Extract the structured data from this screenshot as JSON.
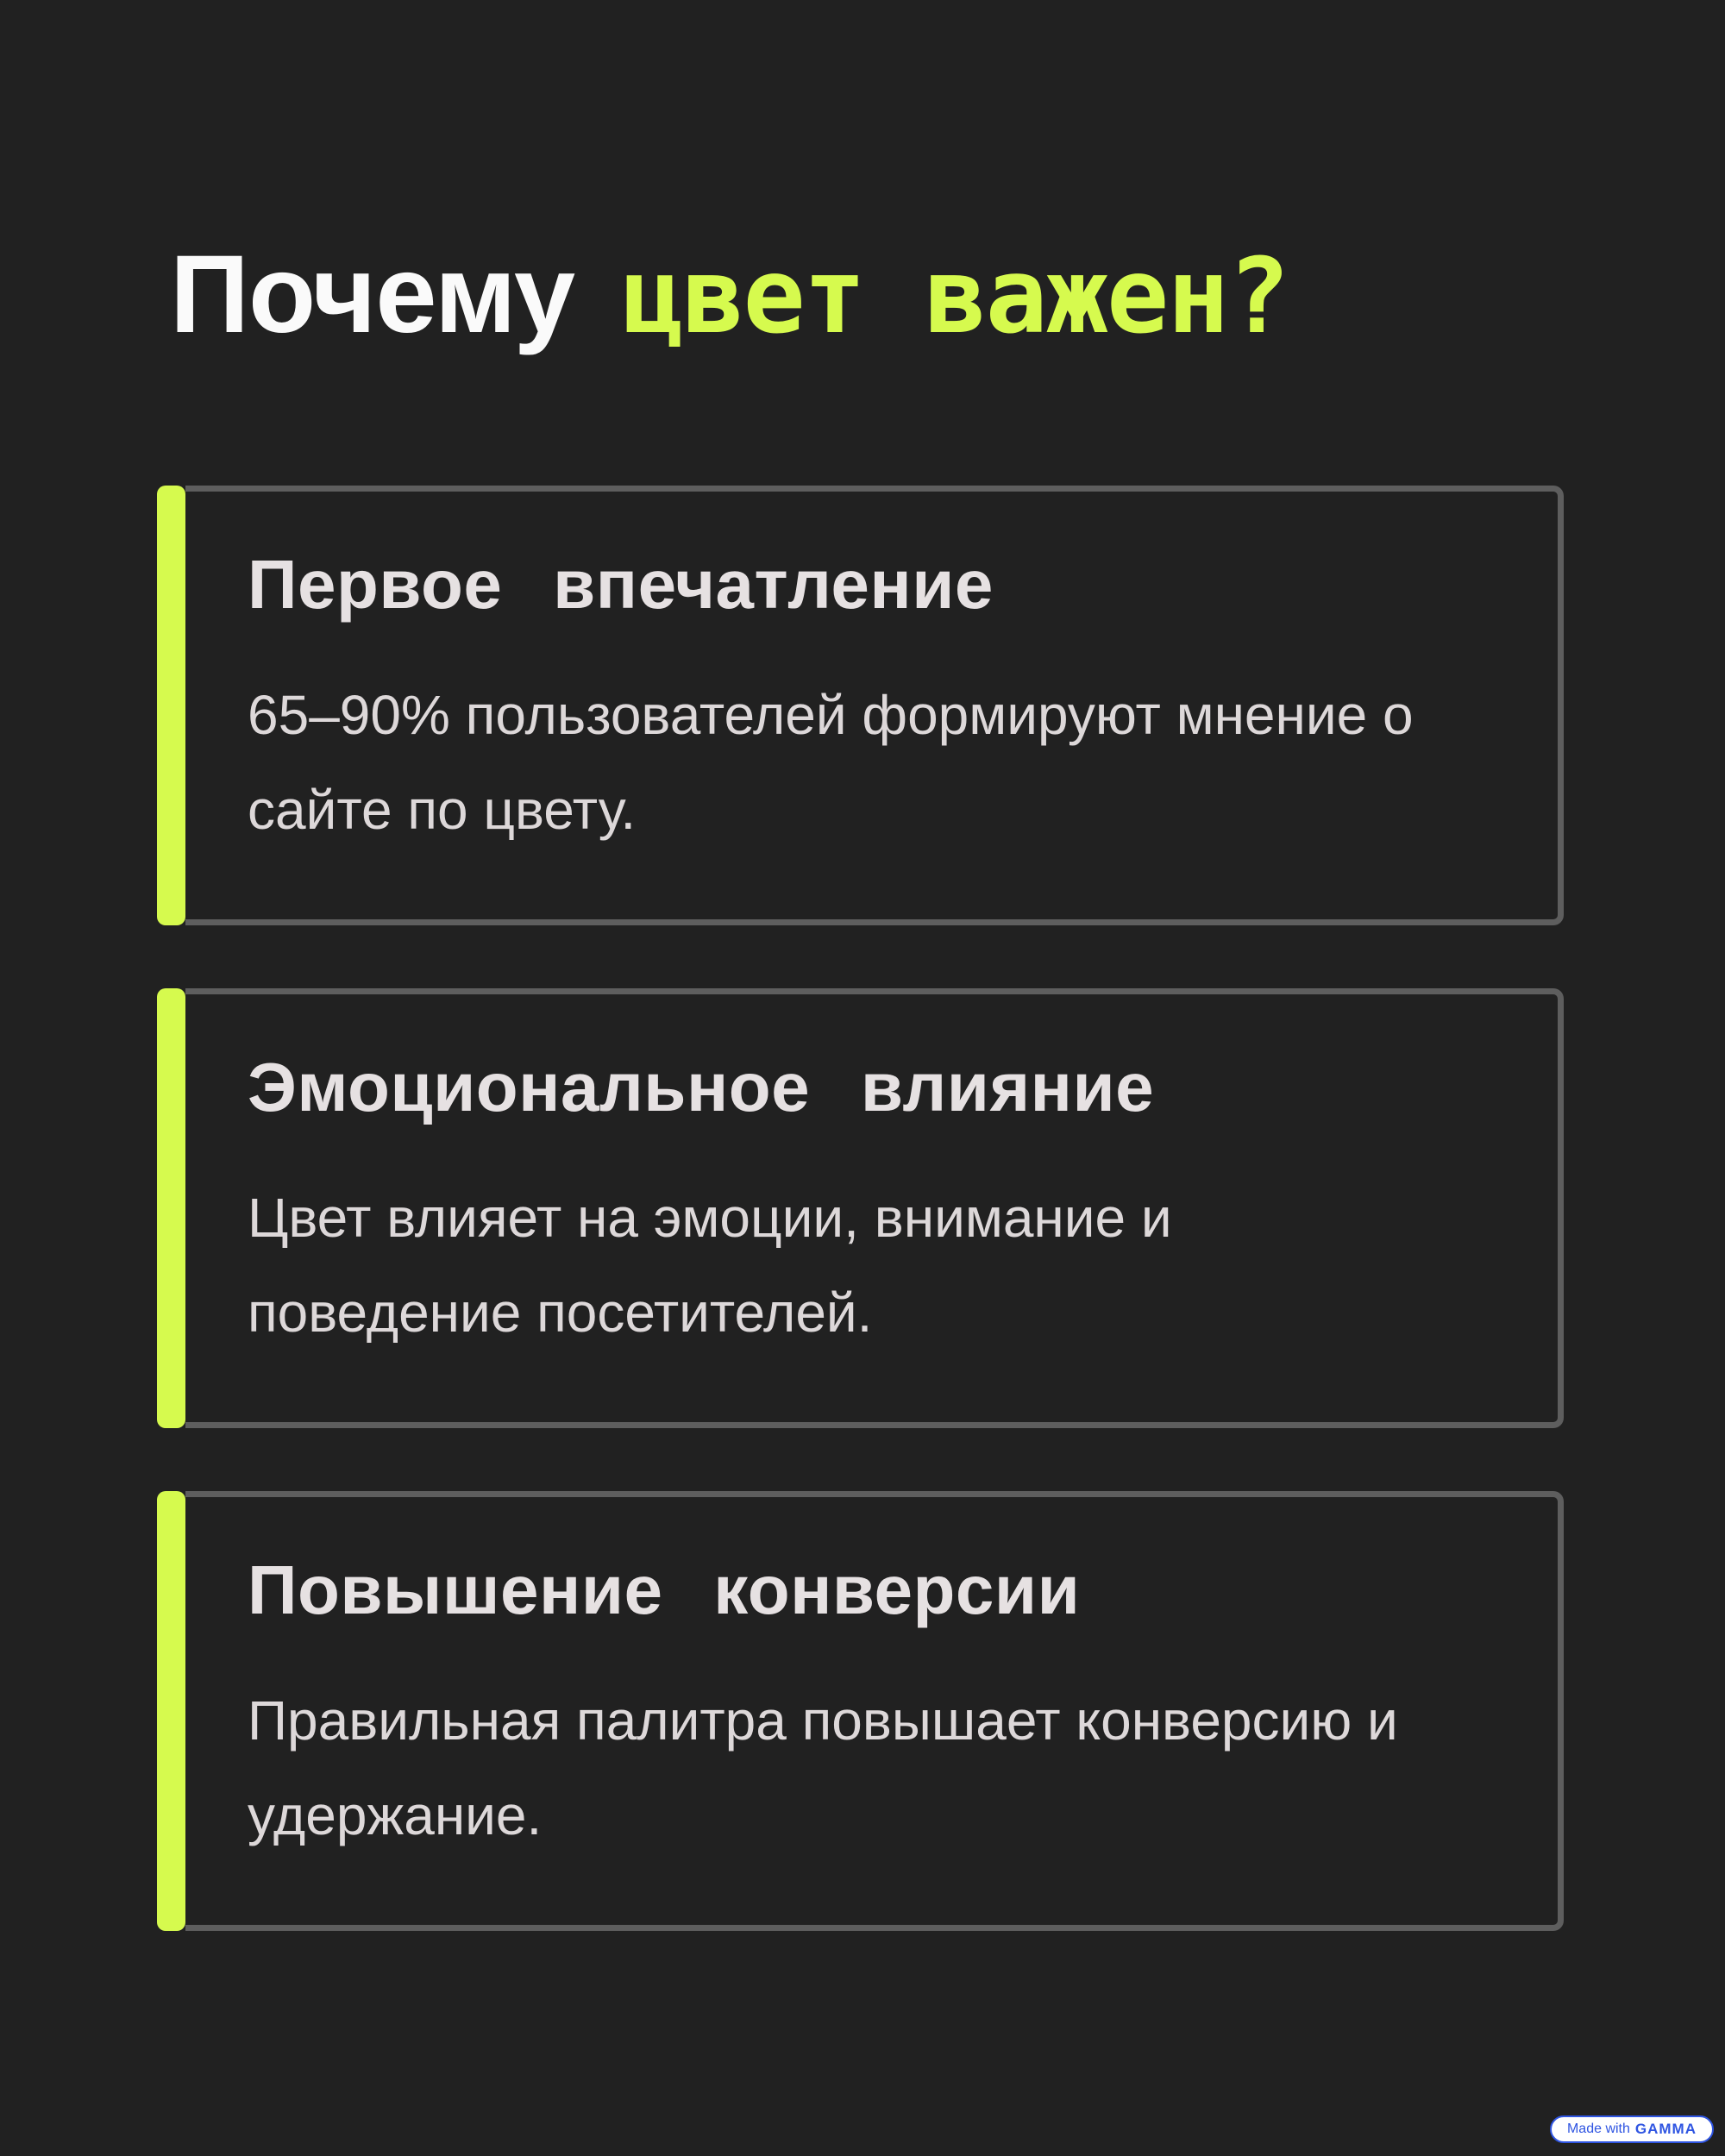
{
  "colors": {
    "background": "#212121",
    "accent": "#d6fa4e",
    "card_border": "#5e5e5e",
    "title_text": "#fafafa",
    "heading_text": "#e6e1e2",
    "body_text": "#ddd8d9",
    "badge_blue": "#2f55e2",
    "badge_bg": "#ffffff"
  },
  "title": {
    "prefix": "Почему",
    "accent": "цвет важен?"
  },
  "cards": [
    {
      "heading": "Первое впечатление",
      "body": "65–90% пользователей формируют мнение о\nсайте по цвету."
    },
    {
      "heading": "Эмоциональное влияние",
      "body": "Цвет влияет на эмоции, внимание и\nповедение посетителей."
    },
    {
      "heading": "Повышение конверсии",
      "body": "Правильная палитра повышает конверсию и\nудержание."
    }
  ],
  "badge": {
    "made_with": "Made with",
    "brand": "GAMMA"
  }
}
